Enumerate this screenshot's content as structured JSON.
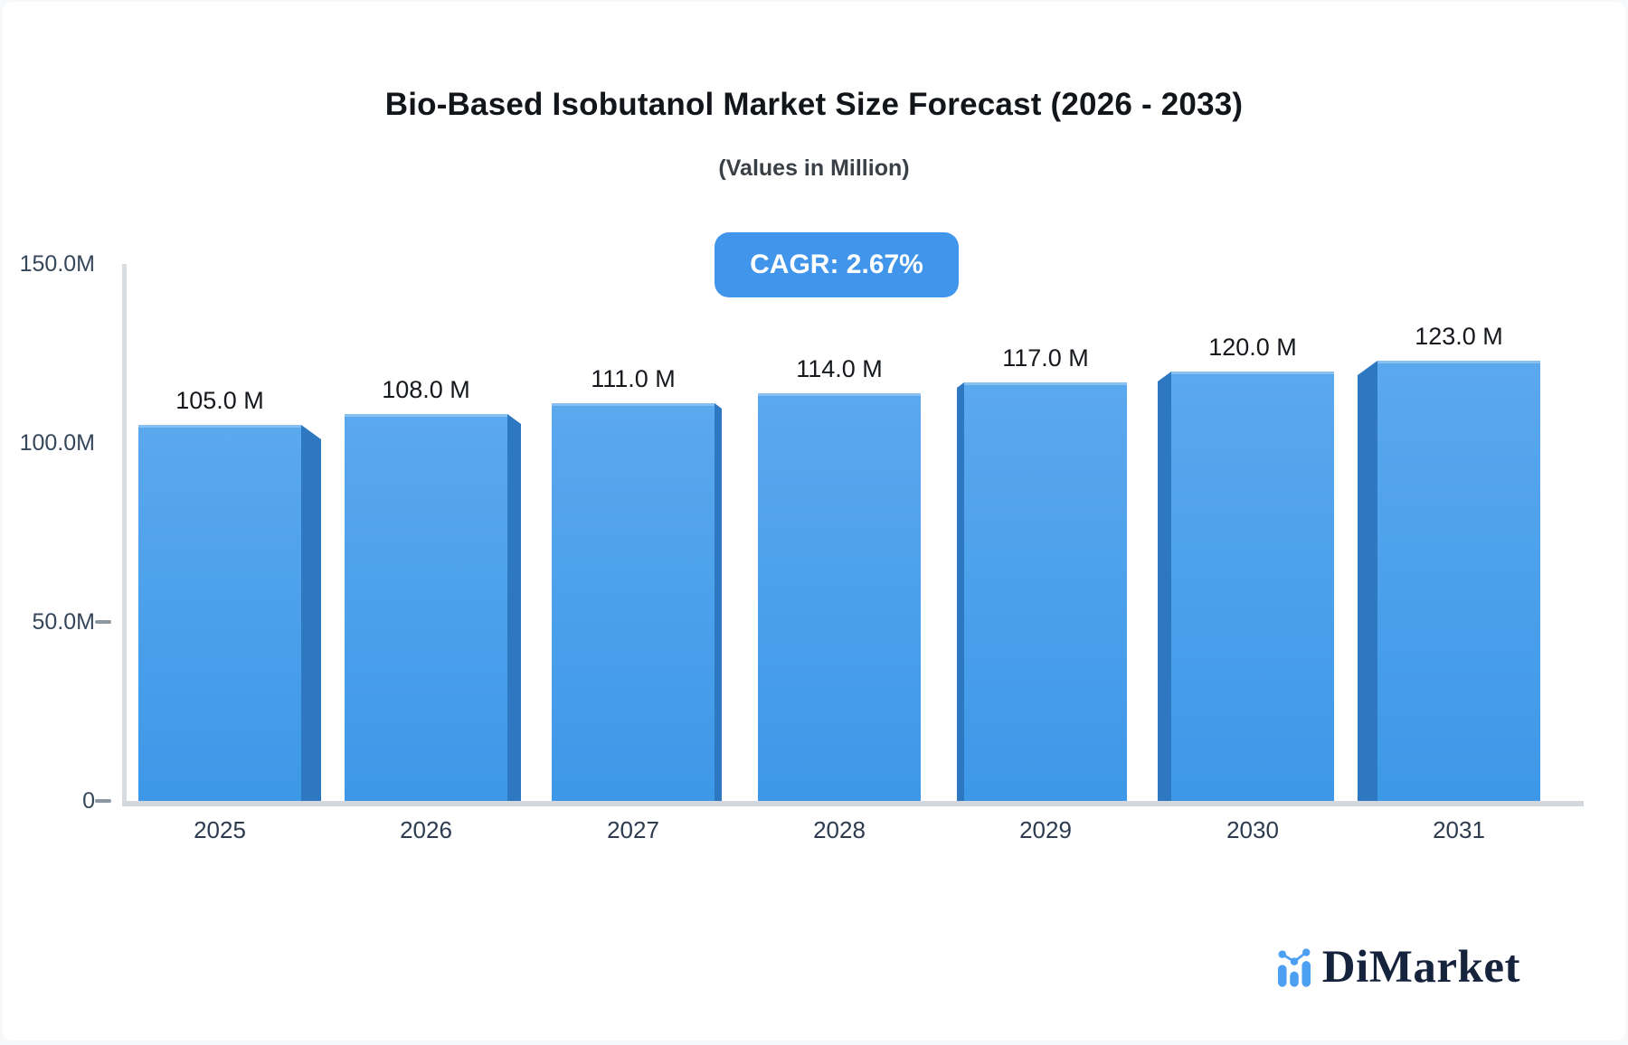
{
  "header": {
    "title": "Bio-Based Isobutanol Market Size Forecast (2026 - 2033)",
    "subtitle": "(Values in Million)"
  },
  "badge": {
    "label": "CAGR: 2.67%",
    "background": "#4196eb",
    "text_color": "#ffffff"
  },
  "chart_data": {
    "type": "bar",
    "title": "Bio-Based Isobutanol Market Size Forecast (2026 - 2033)",
    "subtitle": "(Values in Million)",
    "unit": "Million",
    "cagr": "2.67%",
    "categories": [
      "2025",
      "2026",
      "2027",
      "2028",
      "2029",
      "2030",
      "2031"
    ],
    "values": [
      105,
      108,
      111,
      114,
      117,
      120,
      123
    ],
    "value_labels": [
      "105.0 M",
      "108.0 M",
      "111.0 M",
      "114.0 M",
      "117.0 M",
      "120.0 M",
      "123.0 M"
    ],
    "ylim": [
      0,
      150
    ],
    "yticks": [
      {
        "value": 150,
        "label": "150.0M",
        "tick": false
      },
      {
        "value": 100,
        "label": "100.0M",
        "tick": false
      },
      {
        "value": 50,
        "label": "50.0M",
        "tick": true
      },
      {
        "value": 0,
        "label": "0",
        "tick": true
      }
    ],
    "grid": false,
    "legend": "none",
    "bar_style": "3d-perspective"
  },
  "colors": {
    "bar_face_top": "#5ba8ee",
    "bar_face_bottom": "#3d98e8",
    "bar_face_highlight": "rgba(255,255,255,0.28)",
    "bar_side": "#2d78c0",
    "axis_line": "#d9dce1",
    "baseline": "#d4d8dd",
    "tick_mark": "#8d97a3",
    "value_label": "#15181c",
    "category_label": "#2d3b50",
    "ytick_label": "#36475b"
  },
  "logo": {
    "text": "DiMarket",
    "icon": "bar-chart-logo-icon",
    "text_color": "#16233c",
    "icon_color": "#4d9ff1"
  }
}
